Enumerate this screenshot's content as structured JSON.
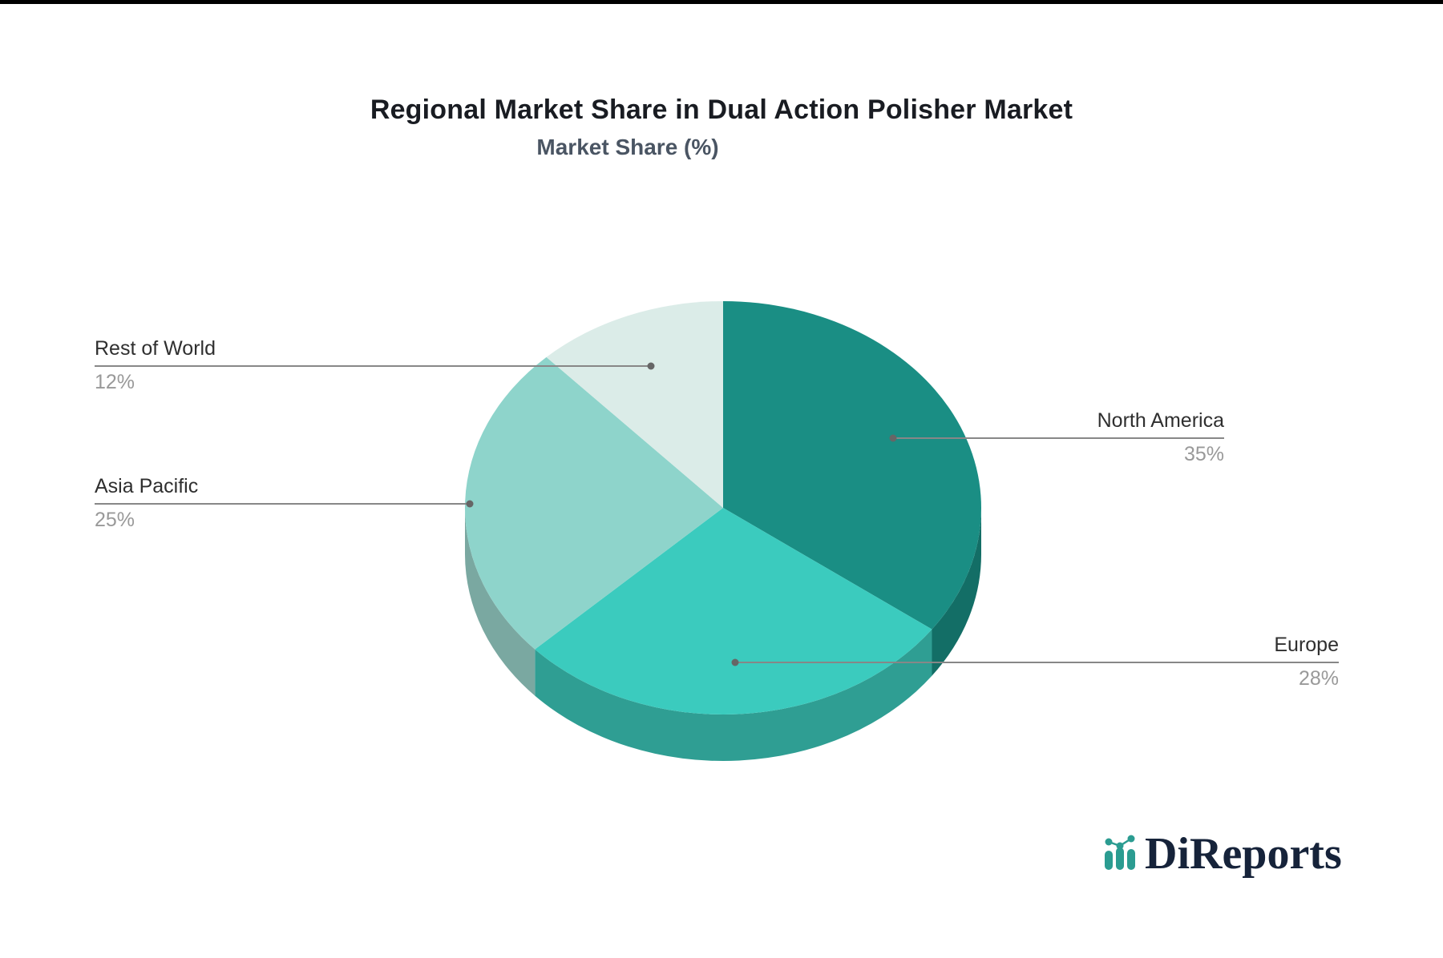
{
  "page": {
    "background": "#ffffff",
    "top_bar_color": "#000000"
  },
  "chart_data": {
    "type": "pie",
    "style": "3d",
    "title": "Regional Market Share in Dual Action Polisher Market",
    "subtitle": "Market Share (%)",
    "unit": "%",
    "start_angle_deg": 0,
    "direction": "clockwise",
    "legend": "none",
    "categories": [
      "North America",
      "Europe",
      "Asia Pacific",
      "Rest of World"
    ],
    "values": [
      35,
      28,
      25,
      12
    ],
    "value_labels": [
      "35%",
      "28%",
      "25%",
      "12%"
    ],
    "slice_colors": [
      "#1a8e84",
      "#3bcbbe",
      "#8ed4cb",
      "#dbece8"
    ],
    "slice_side_colors": [
      "#136e66",
      "#2f9e93",
      "#7aa8a1",
      "#c9ddd8"
    ],
    "label_text_color": "#2f2f2f",
    "value_text_color": "#999999",
    "leader_line_color": "#878787",
    "leader_dot_color": "#666666",
    "title_color": "#191c22",
    "subtitle_color": "#4a5563"
  },
  "branding": {
    "logo_text": "DiReports",
    "logo_icon": "bar-line-chart-icon",
    "logo_text_color": "#16233a",
    "logo_accent_color": "#2b9c91"
  }
}
